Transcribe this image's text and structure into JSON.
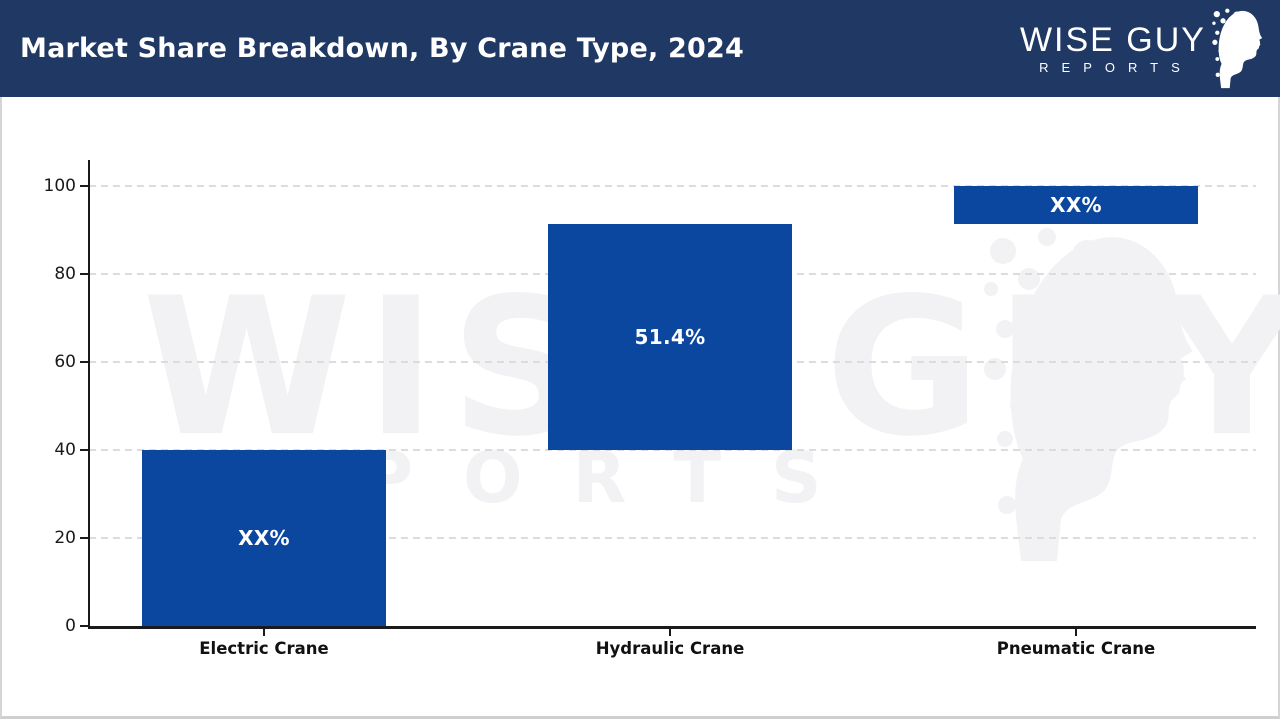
{
  "header": {
    "title": "Market Share Breakdown, By Crane Type, 2024",
    "logo": {
      "line1": "WISE GUY",
      "line2": "REPORTS"
    }
  },
  "watermark": {
    "line1": "WISE GUY",
    "line2": "REPORTS"
  },
  "chart_data": {
    "type": "bar",
    "subtype": "waterfall",
    "title": "Market Share Breakdown, By Crane Type, 2024",
    "categories": [
      "Electric Crane",
      "Hydraulic Crane",
      "Pneumatic Crane"
    ],
    "series": [
      {
        "name": "Market Share (%)",
        "segments": [
          {
            "start": 0,
            "end": 40,
            "value": 40,
            "label": "XX%"
          },
          {
            "start": 40,
            "end": 91.4,
            "value": 51.4,
            "label": "51.4%"
          },
          {
            "start": 91.4,
            "end": 100,
            "value": 8.6,
            "label": "XX%"
          }
        ]
      }
    ],
    "bar_labels": [
      "XX%",
      "51.4%",
      "XX%"
    ],
    "yticks": [
      0,
      20,
      40,
      60,
      80,
      100
    ],
    "ylim": [
      0,
      106
    ],
    "xlabel": "",
    "ylabel": "",
    "grid": "horizontal-dashed",
    "legend": "none"
  },
  "colors": {
    "header_bg": "#203864",
    "bar": "#0b479e",
    "grid": "#dcdcdc",
    "axis": "#1a1a1a",
    "bar_label_text": "#ffffff",
    "watermark": "#f2f2f4",
    "figure_border": "#d5d5d5"
  }
}
